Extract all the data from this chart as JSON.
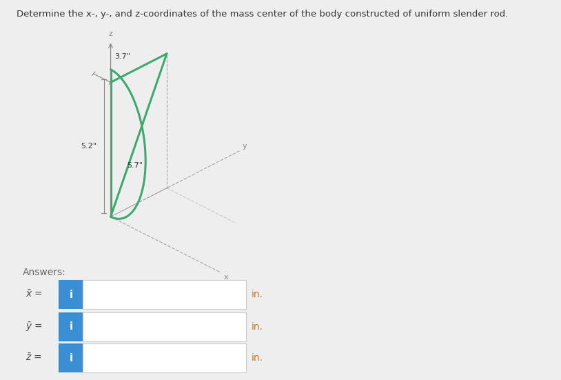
{
  "title": "Determine the x-, y-, and z-coordinates of the mass center of the body constructed of uniform slender rod.",
  "title_fontsize": 9.5,
  "bg_color": "#eeeeee",
  "diagram": {
    "green_color": "#3aaa6e",
    "gray_color": "#888888",
    "dashed_color": "#aaaaaa",
    "label_37": "3.7\"",
    "label_52": "5.2\"",
    "label_57": "5.7\""
  },
  "answers": {
    "box_border_color": "#cccccc",
    "btn_color": "#3a8fd4",
    "btn_text": "i",
    "unit": "in.",
    "unit_color": "#c87820"
  }
}
